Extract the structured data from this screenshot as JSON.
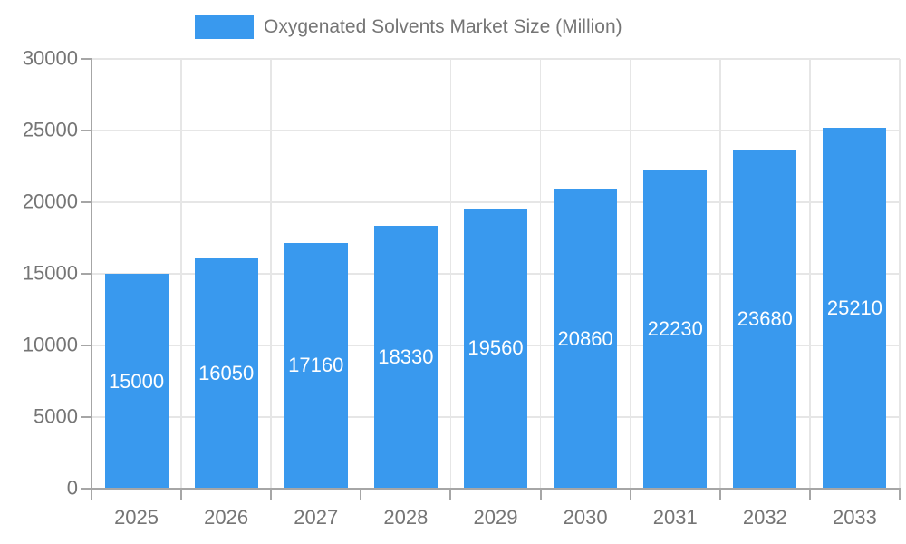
{
  "chart_data": {
    "type": "bar",
    "legend": [
      "Oxygenated Solvents Market Size (Million)"
    ],
    "legend_position": "top",
    "categories": [
      "2025",
      "2026",
      "2027",
      "2028",
      "2029",
      "2030",
      "2031",
      "2032",
      "2033"
    ],
    "series": [
      {
        "name": "Oxygenated Solvents Market Size (Million)",
        "values": [
          15000,
          16050,
          17160,
          18330,
          19560,
          20860,
          22230,
          23680,
          25210
        ],
        "color": "#3999ee"
      }
    ],
    "data_labels_shown": true,
    "xlabel": "",
    "ylabel": "",
    "ylim": [
      0,
      30000
    ],
    "yticks": [
      0,
      5000,
      10000,
      15000,
      20000,
      25000,
      30000
    ],
    "grid": true
  },
  "colors": {
    "bar": "#3999ee",
    "bar_label_text": "#ffffff",
    "axis_line": "#a6a6a6",
    "grid_line": "#e6e6e6",
    "tick_text": "#757575",
    "legend_text": "#757575",
    "background": "#ffffff"
  }
}
